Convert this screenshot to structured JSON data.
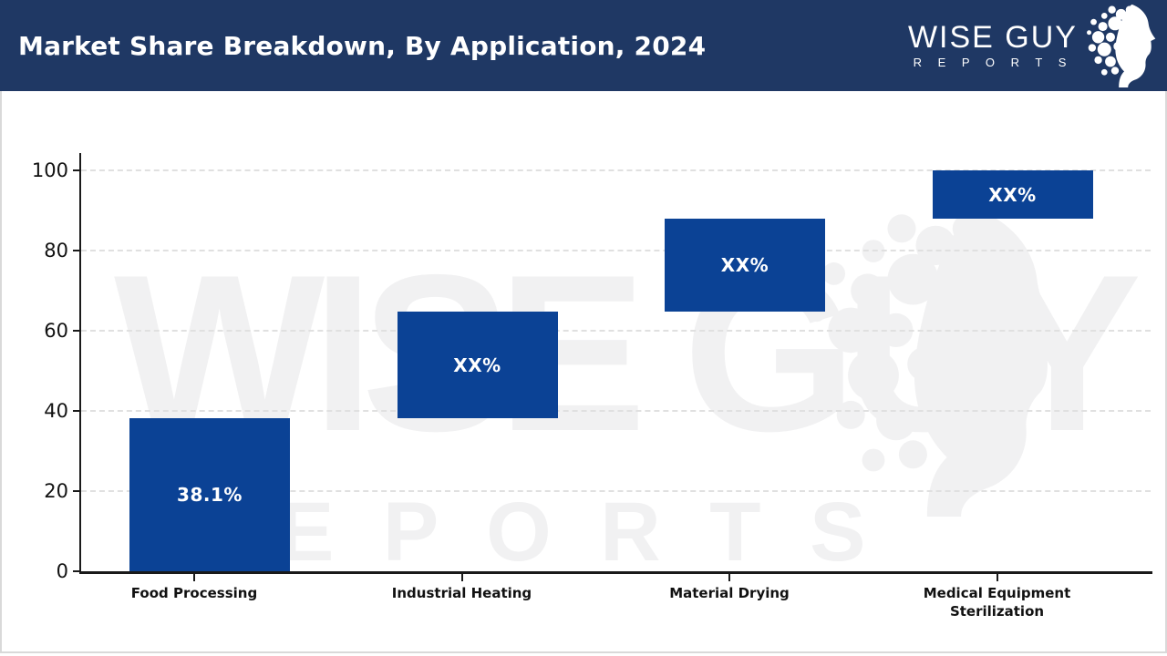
{
  "header": {
    "title": "Market Share Breakdown, By Application, 2024",
    "logo": {
      "line1": "WISE GUY",
      "line2": "R E P O R T S"
    }
  },
  "watermark": {
    "line1": "WISE GUY",
    "line2": "R E P O R T S"
  },
  "colors": {
    "header_bg": "#1f3864",
    "bar": "#0b4295",
    "bar_label": "#ffffff",
    "grid": "#e0e0e0",
    "axis": "#1a1a1a",
    "tick_label": "#111111",
    "watermark": "#f1f1f2"
  },
  "chart_data": {
    "type": "bar",
    "subtype": "waterfall",
    "title": "Market Share Breakdown, By Application, 2024",
    "categories": [
      "Food Processing",
      "Industrial Heating",
      "Material Drying",
      "Medical Equipment Sterilization"
    ],
    "series": [
      {
        "name": "Market share (%)",
        "segments": [
          {
            "category": "Food Processing",
            "start": 0,
            "end": 38.1,
            "label": "38.1%"
          },
          {
            "category": "Industrial Heating",
            "start": 38.1,
            "end": 64.7,
            "label": "XX%"
          },
          {
            "category": "Material Drying",
            "start": 64.7,
            "end": 87.9,
            "label": "XX%"
          },
          {
            "category": "Medical Equipment Sterilization",
            "start": 87.9,
            "end": 100,
            "label": "XX%"
          }
        ]
      }
    ],
    "xlabel": "",
    "ylabel": "",
    "ylim": [
      0,
      100
    ],
    "yticks": [
      0,
      20,
      40,
      60,
      80,
      100
    ],
    "grid": "horizontal-dashed",
    "legend": "none",
    "bar_color": "#0b4295"
  }
}
